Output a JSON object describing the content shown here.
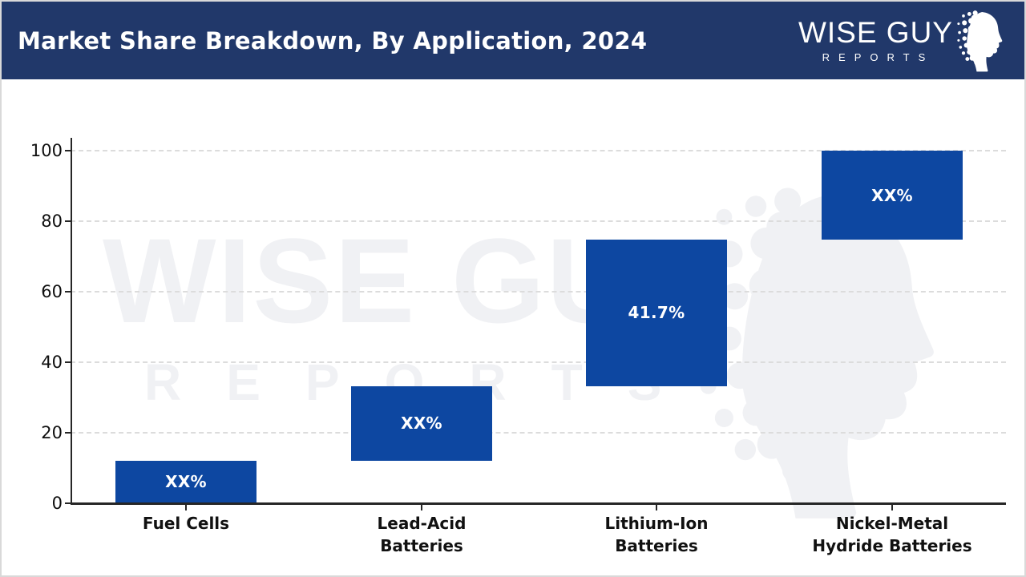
{
  "header": {
    "title": "Market Share Breakdown, By Application, 2024",
    "logo": {
      "line1": "WISE GUY",
      "line2": "REPORTS"
    }
  },
  "colors": {
    "header_bg": "#21386a",
    "bar": "#0d47a1",
    "axis": "#262626",
    "grid": "#dcdcdc",
    "tick_text": "#0f0f0f",
    "category_text": "#111111",
    "bar_label_text": "#ffffff",
    "watermark": "#f0f1f4",
    "logo_text": "#ffffff"
  },
  "chart_data": {
    "type": "bar",
    "variant": "waterfall",
    "title": "Market Share Breakdown, By Application, 2024",
    "xlabel": "",
    "ylabel": "",
    "ylim": [
      0,
      100
    ],
    "yticks": [
      0,
      20,
      40,
      60,
      80,
      100
    ],
    "grid": "horizontal-dashed",
    "legend": "none",
    "bar_color": "#0d47a1",
    "categories": [
      "Fuel Cells",
      "Lead-Acid Batteries",
      "Lithium-Ion Batteries",
      "Nickel-Metal Hydride Batteries"
    ],
    "bars": [
      {
        "category": "Fuel Cells",
        "category_lines": [
          "Fuel Cells"
        ],
        "start": 0,
        "end": 12.1,
        "value_label": "XX%",
        "value_estimate": 12.1
      },
      {
        "category": "Lead-Acid Batteries",
        "category_lines": [
          "Lead-Acid",
          "Batteries"
        ],
        "start": 12.1,
        "end": 33.2,
        "value_label": "XX%",
        "value_estimate": 21.1
      },
      {
        "category": "Lithium-Ion Batteries",
        "category_lines": [
          "Lithium-Ion",
          "Batteries"
        ],
        "start": 33.2,
        "end": 74.9,
        "value_label": "41.7%",
        "value_estimate": 41.7
      },
      {
        "category": "Nickel-Metal Hydride Batteries",
        "category_lines": [
          "Nickel-Metal",
          "Hydride Batteries"
        ],
        "start": 74.9,
        "end": 100,
        "value_label": "XX%",
        "value_estimate": 25.1
      }
    ]
  }
}
